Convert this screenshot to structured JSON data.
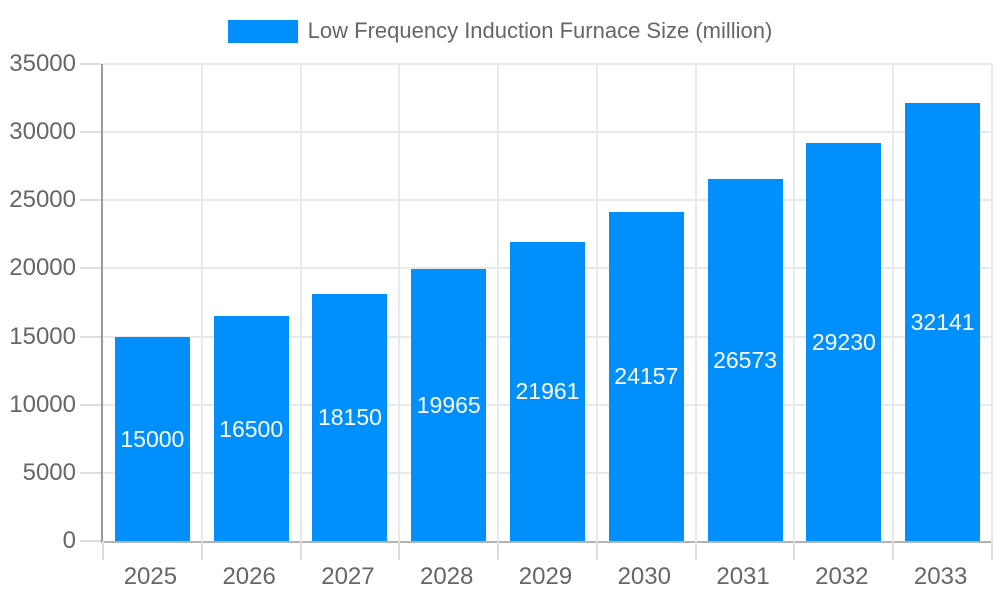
{
  "chart_data": {
    "type": "bar",
    "title": "Low Frequency Induction Furnace Size (million)",
    "categories": [
      "2025",
      "2026",
      "2027",
      "2028",
      "2029",
      "2030",
      "2031",
      "2032",
      "2033"
    ],
    "values": [
      15000,
      16500,
      18150,
      19965,
      21961,
      24157,
      26573,
      29230,
      32141
    ],
    "bar_labels": [
      "15000",
      "16500",
      "18150",
      "19965",
      "21961",
      "24157",
      "26573",
      "29230",
      "32141"
    ],
    "xlabel": "",
    "ylabel": "",
    "ylim": [
      0,
      35000
    ],
    "ytick_step": 5000,
    "ytick_labels": [
      "0",
      "5000",
      "10000",
      "15000",
      "20000",
      "25000",
      "30000",
      "35000"
    ],
    "grid": true,
    "legend_position": "top",
    "colors": {
      "bar": "#008FFB",
      "bar_label_text": "#FFFFFF",
      "axis_text": "#666666",
      "legend_text": "#666666",
      "gridline": "#E9E9E9",
      "tick": "#DDDDDD",
      "y_axis_line": "#999999",
      "x_axis_line": "#B3B3B3",
      "background": "#FFFFFF"
    }
  },
  "legend": {
    "label": "Low Frequency Induction Furnace Size (million)"
  }
}
